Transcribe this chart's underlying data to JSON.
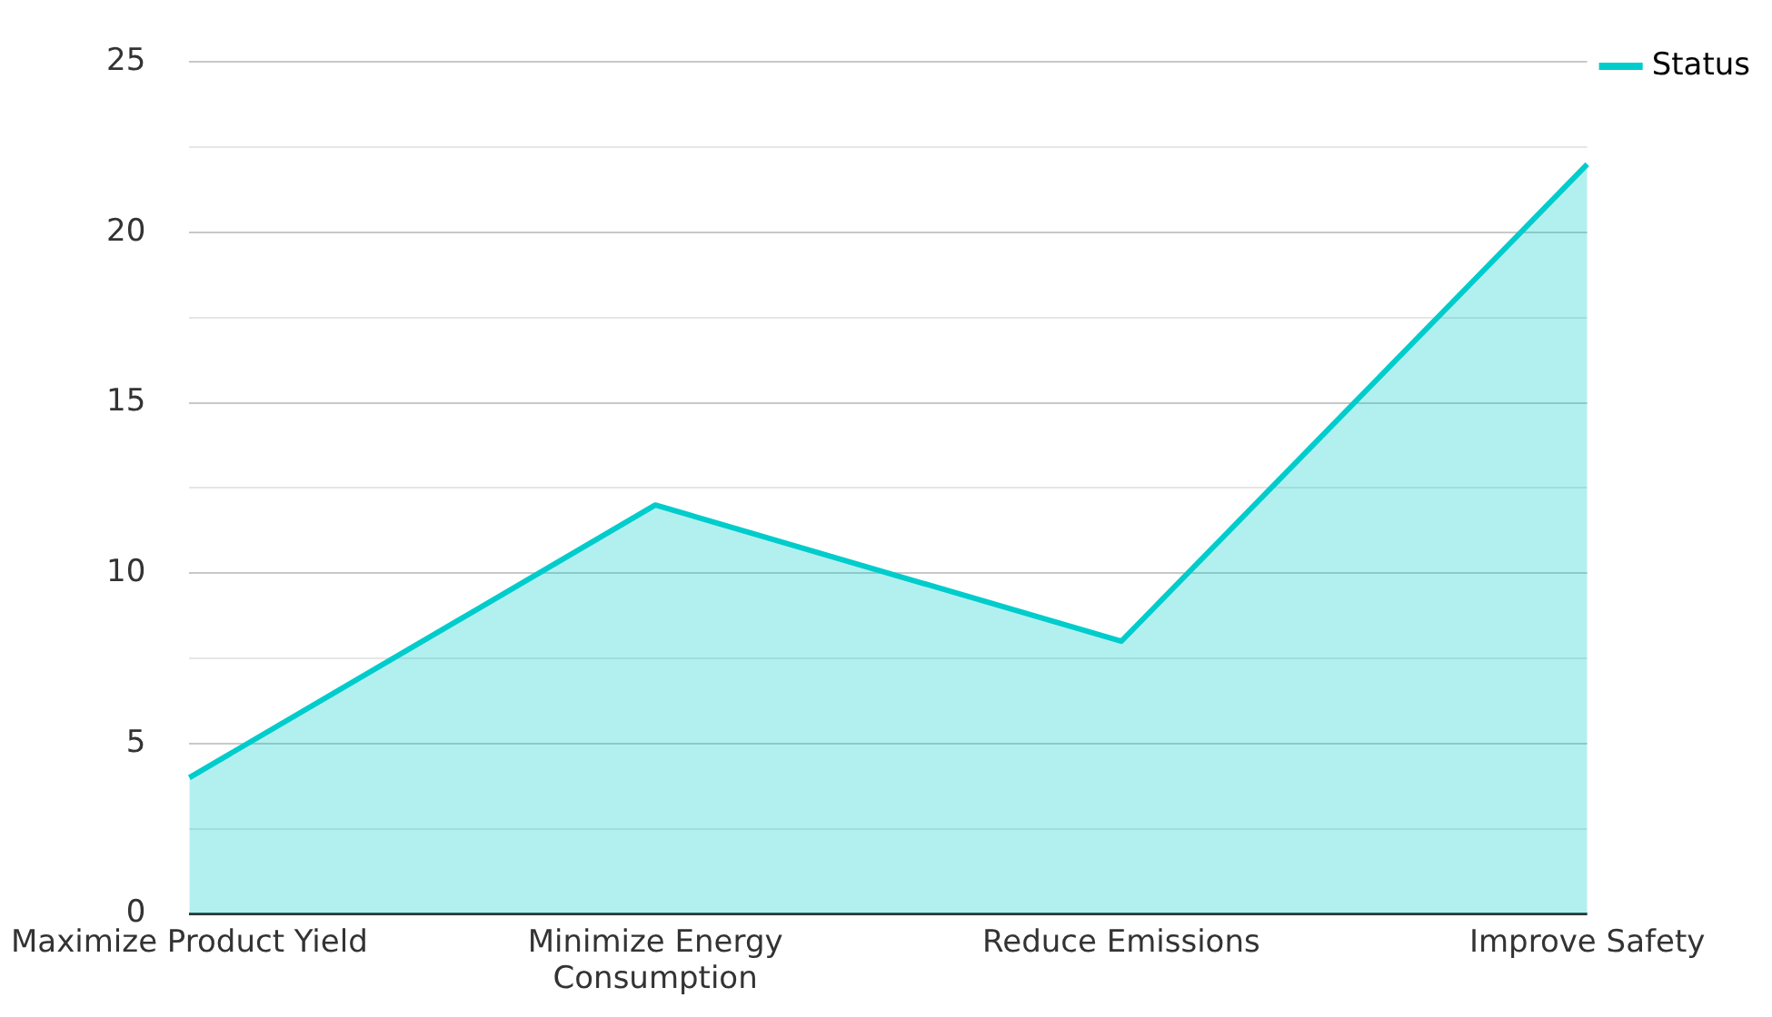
{
  "chart_data": {
    "type": "area",
    "categories": [
      "Maximize Product Yield",
      "Minimize Energy Consumption",
      "Reduce Emissions",
      "Improve Safety"
    ],
    "series": [
      {
        "name": "Status",
        "color": "#00cccc",
        "values": [
          4,
          12,
          8,
          22
        ]
      }
    ],
    "ylim": [
      0,
      25
    ],
    "yticks": [
      0,
      {
        "value": 2.5,
        "label": null
      },
      5,
      {
        "value": 7.5,
        "label": null
      },
      10,
      {
        "value": 12.5,
        "label": null
      },
      15,
      {
        "value": 17.5,
        "label": null
      },
      20,
      {
        "value": 22.5,
        "label": null
      },
      25
    ],
    "grid": "y",
    "legend": "top right"
  }
}
